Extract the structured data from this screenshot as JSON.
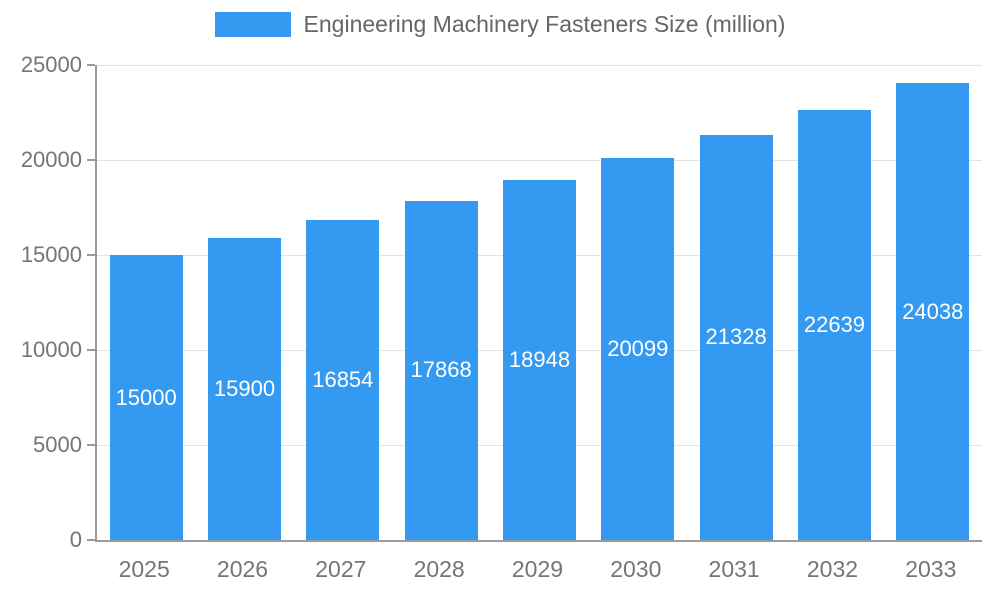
{
  "legend": {
    "label": "Engineering Machinery Fasteners Size (million)"
  },
  "colors": {
    "bar": "#3499f0",
    "axis": "#9a9a9a",
    "grid": "#e3e3e3",
    "tick_text": "#757575",
    "value_text": "#ffffff"
  },
  "chart_data": {
    "type": "bar",
    "title": "Engineering Machinery Fasteners Size (million)",
    "categories": [
      "2025",
      "2026",
      "2027",
      "2028",
      "2029",
      "2030",
      "2031",
      "2032",
      "2033"
    ],
    "values": [
      15000,
      15900,
      16854,
      17868,
      18948,
      20099,
      21328,
      22639,
      24038
    ],
    "xlabel": "",
    "ylabel": "",
    "ylim": [
      0,
      25000
    ],
    "yticks": [
      0,
      5000,
      10000,
      15000,
      20000,
      25000
    ],
    "grid": true,
    "legend_position": "top",
    "value_label_position": "inside-center"
  }
}
